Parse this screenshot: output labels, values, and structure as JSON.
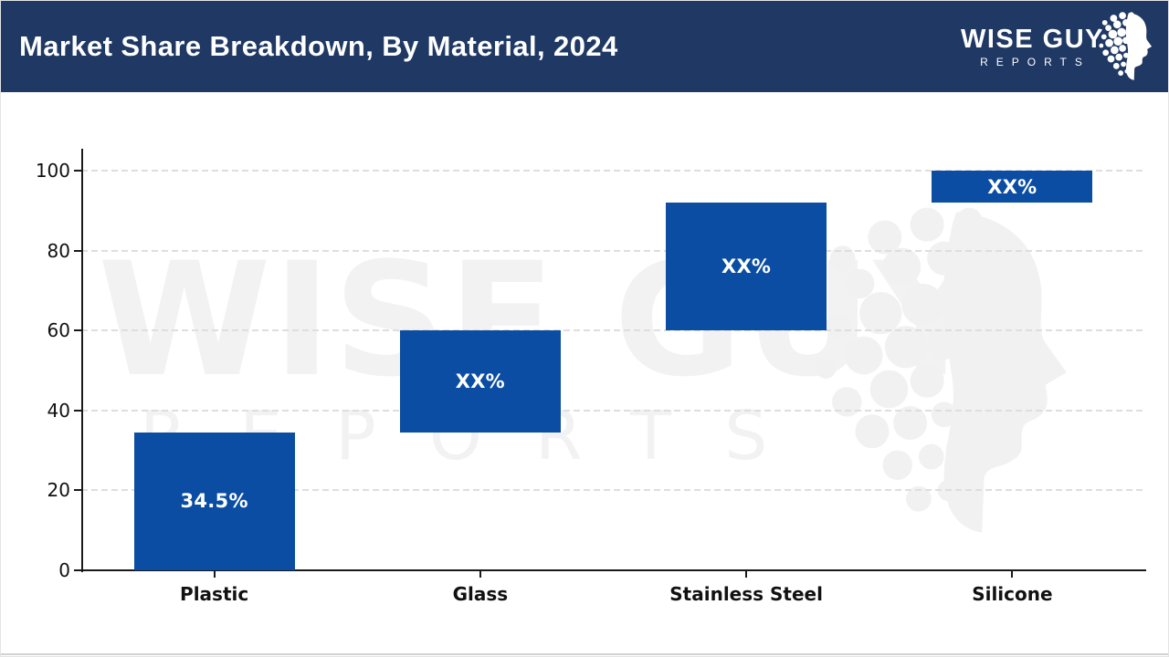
{
  "header": {
    "title": "Market Share Breakdown, By Material, 2024",
    "brand": {
      "name": "WISE GUY",
      "sub": "REPORTS",
      "icon": "dotted-face-profile"
    }
  },
  "watermark": {
    "line1": "WISE GUY",
    "line2": "REPORTS"
  },
  "colors": {
    "header_bg": "#1F3864",
    "bar": "#0B4DA2",
    "grid": "#DEDEDE",
    "axis": "#1A1A1A",
    "bar_label_text": "#FFFFFF",
    "watermark": "#F2F2F2",
    "background": "#FFFFFF"
  },
  "chart_data": {
    "type": "bar",
    "variant": "waterfall",
    "title": "Market Share Breakdown, By Material, 2024",
    "categories": [
      "Plastic",
      "Glass",
      "Stainless Steel",
      "Silicone"
    ],
    "segments": [
      {
        "category": "Plastic",
        "start": 0,
        "end": 34.5,
        "value": 34.5,
        "label": "34.5%"
      },
      {
        "category": "Glass",
        "start": 34.5,
        "end": 60,
        "value": 25.5,
        "label": "XX%"
      },
      {
        "category": "Stainless Steel",
        "start": 60,
        "end": 92,
        "value": 32,
        "label": "XX%"
      },
      {
        "category": "Silicone",
        "start": 92,
        "end": 100,
        "value": 8,
        "label": "XX%"
      }
    ],
    "xlabel": "",
    "ylabel": "",
    "ylim": [
      0,
      100
    ],
    "yticks": [
      0,
      20,
      40,
      60,
      80,
      100
    ],
    "grid": {
      "axis": "y",
      "style": "dashed"
    },
    "legend": null
  }
}
